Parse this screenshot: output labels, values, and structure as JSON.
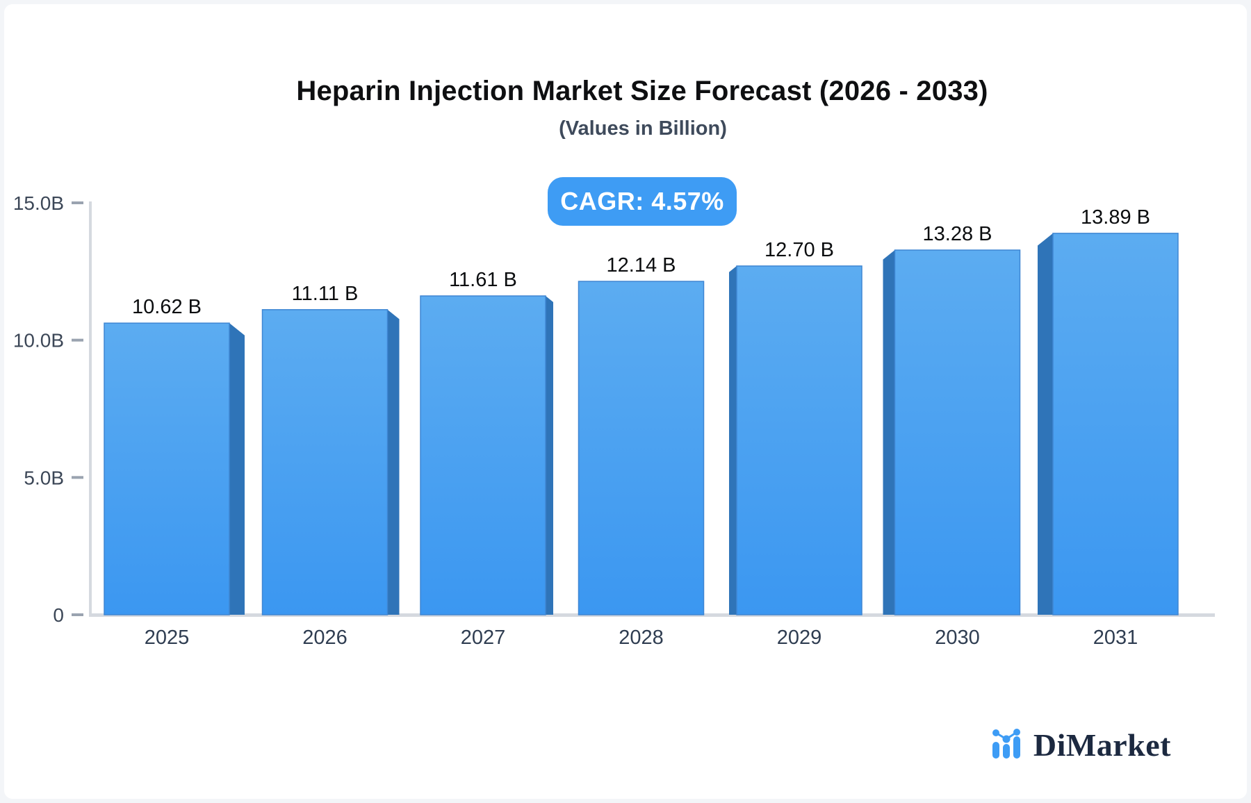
{
  "header": {
    "title": "Heparin Injection Market Size Forecast (2026 - 2033)",
    "subtitle": "(Values in Billion)"
  },
  "badge": {
    "label": "CAGR: 4.57%"
  },
  "chart_data": {
    "type": "bar",
    "title": "Heparin Injection Market Size Forecast (2026 - 2033)",
    "subtitle": "(Values in Billion)",
    "categories": [
      "2025",
      "2026",
      "2027",
      "2028",
      "2029",
      "2030",
      "2031"
    ],
    "values": [
      10.62,
      11.11,
      11.61,
      12.14,
      12.7,
      13.28,
      13.89
    ],
    "bar_labels": [
      "10.62 B",
      "11.11 B",
      "11.61 B",
      "12.14 B",
      "12.70 B",
      "13.28 B",
      "13.89 B"
    ],
    "xlabel": "",
    "ylabel": "",
    "ylim": [
      0,
      15
    ],
    "yticks": [
      {
        "value": 15,
        "label": "15.0B"
      },
      {
        "value": 10,
        "label": "10.0B"
      },
      {
        "value": 5,
        "label": "5.0B"
      },
      {
        "value": 0,
        "label": "0"
      }
    ],
    "grid": false,
    "legend": false,
    "style": "3d-bars-perspective-from-center"
  },
  "logo": {
    "text": "DiMarket",
    "icon": "mini-bar-chart-icon"
  },
  "colors": {
    "accent": "#3E9CF4",
    "page_bg": "#F3F5F8",
    "card_bg": "#FFFFFF",
    "title": "#0E0F11",
    "subtitle": "#3E4A5B",
    "bar_face_top": "#5CACF1",
    "bar_face_bottom": "#3B97F1",
    "bar_face_stroke": "#3F86D3",
    "bar_side": "#2F74B8",
    "axis_line": "#D5D9DF",
    "tick_mark": "#9AA3B0",
    "y_label": "#3C4757",
    "x_label": "#2F3D51",
    "value_label": "#0B0D0F",
    "logo_blue": "#3D9CF5",
    "logo_text": "#1C2940"
  }
}
